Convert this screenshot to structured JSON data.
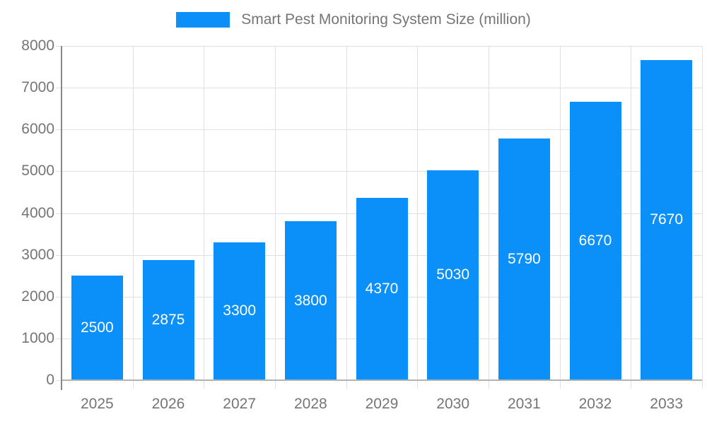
{
  "chart_data": {
    "type": "bar",
    "title": "Smart Pest Monitoring System Size (million)",
    "categories": [
      "2025",
      "2026",
      "2027",
      "2028",
      "2029",
      "2030",
      "2031",
      "2032",
      "2033"
    ],
    "values": [
      2500,
      2875,
      3300,
      3800,
      4370,
      5030,
      5790,
      6670,
      7670
    ],
    "xlabel": "",
    "ylabel": "",
    "ylim": [
      0,
      8000
    ],
    "y_ticks": [
      0,
      1000,
      2000,
      3000,
      4000,
      5000,
      6000,
      7000,
      8000
    ],
    "grid": true,
    "legend_position": "top-center",
    "value_labels_inside_bars": true,
    "colors": {
      "bar": "#0b90f9",
      "value_label": "#ffffff",
      "tick_label": "#757575",
      "legend_text": "#757575",
      "gridline": "#e0e0e0",
      "axis_line": "#888888",
      "baseline": "#b3b3b3",
      "background": "#ffffff"
    }
  }
}
